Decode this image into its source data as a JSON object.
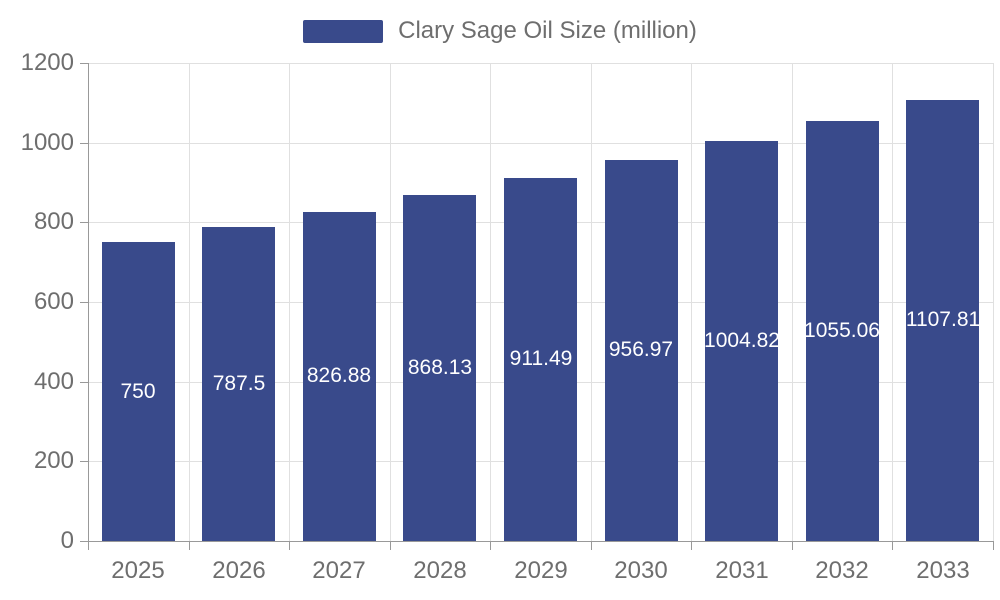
{
  "legend": {
    "label": "Clary Sage Oil Size (million)",
    "swatch_color": "#394a8b"
  },
  "chart_data": {
    "type": "bar",
    "title": "Clary Sage Oil Size (million)",
    "categories": [
      "2025",
      "2026",
      "2027",
      "2028",
      "2029",
      "2030",
      "2031",
      "2032",
      "2033"
    ],
    "values": [
      750,
      787.5,
      826.88,
      868.13,
      911.49,
      956.97,
      1004.82,
      1055.06,
      1107.81
    ],
    "value_labels": [
      "750",
      "787.5",
      "826.88",
      "868.13",
      "911.49",
      "956.97",
      "1004.82",
      "1055.06",
      "1107.81"
    ],
    "xlabel": "",
    "ylabel": "",
    "ylim": [
      0,
      1200
    ],
    "y_ticks": [
      0,
      200,
      400,
      600,
      800,
      1000,
      1200
    ],
    "grid": true,
    "legend_position": "top-center",
    "bar_color": "#394a8b",
    "data_label_color": "#ffffff",
    "axis_text_color": "#6e6e6e",
    "grid_color": "#e0e0e0",
    "axis_line_color": "#999999",
    "background_color": "#ffffff"
  }
}
